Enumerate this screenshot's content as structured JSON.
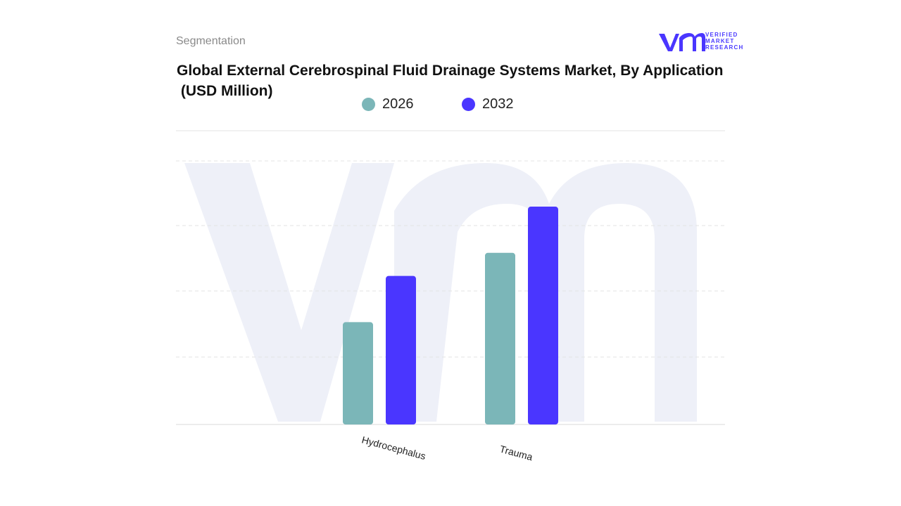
{
  "header": {
    "section_label": "Segmentation",
    "brand": {
      "line1": "VERIFIED",
      "line2": "MARKET",
      "line3": "RESEARCH"
    }
  },
  "colors": {
    "series_2026": "#7bb6b8",
    "series_2032": "#4a36ff",
    "grid": "#e3e3e3",
    "watermark": "#eef0f8"
  },
  "chart_data": {
    "type": "bar",
    "title": "Global External Cerebrospinal Fluid Drainage Systems Market, By Application",
    "subtitle": " (USD Million)",
    "xlabel": "",
    "ylabel": "",
    "categories": [
      "Hydrocephalus",
      "Trauma"
    ],
    "series": [
      {
        "name": "2026",
        "values": [
          3.1,
          5.2
        ]
      },
      {
        "name": "2032",
        "values": [
          4.5,
          6.6
        ]
      }
    ],
    "ylim": [
      0,
      8.9
    ],
    "grid": true,
    "legend_position": "top-center"
  }
}
